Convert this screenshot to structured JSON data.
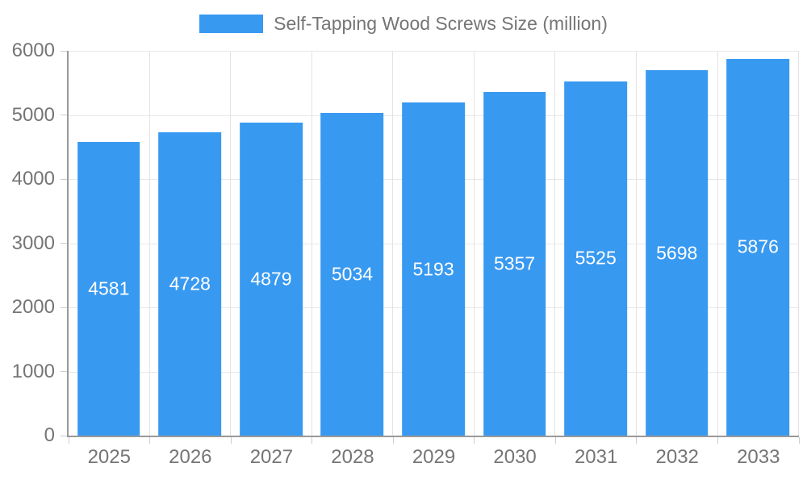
{
  "legend": {
    "label": "Self-Tapping Wood Screws Size (million)"
  },
  "colors": {
    "bar": "#3899F0",
    "grid": "#E8E8E8",
    "axis": "#999999",
    "tick": "#CCCCCC",
    "axis_text": "#757575",
    "bar_label_text": "#FFFFFF"
  },
  "chart_data": {
    "type": "bar",
    "title": "Self-Tapping Wood Screws Size (million)",
    "categories": [
      "2025",
      "2026",
      "2027",
      "2028",
      "2029",
      "2030",
      "2031",
      "2032",
      "2033"
    ],
    "values": [
      4581,
      4728,
      4879,
      5034,
      5193,
      5357,
      5525,
      5698,
      5876
    ],
    "xlabel": "",
    "ylabel": "",
    "ylim": [
      0,
      6000
    ],
    "ytick_step": 1000,
    "yticks": [
      "0",
      "1000",
      "2000",
      "3000",
      "4000",
      "5000",
      "6000"
    ],
    "grid": true,
    "legend_position": "top",
    "bar_labels_inside": true
  }
}
